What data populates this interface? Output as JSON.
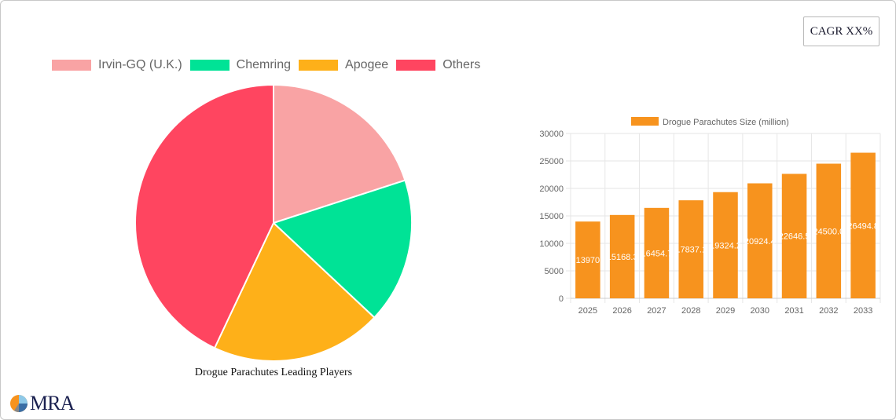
{
  "cagr_badge": "CAGR XX%",
  "pie": {
    "title": "Drogue Parachutes Leading Players",
    "legend": [
      {
        "label": "Irvin-GQ (U.K.)",
        "color": "#f9a3a4"
      },
      {
        "label": "Chemring",
        "color": "#00e396"
      },
      {
        "label": "Apogee",
        "color": "#feb019"
      },
      {
        "label": "Others",
        "color": "#ff4560"
      }
    ]
  },
  "bar": {
    "legend_label": "Drogue Parachutes Size (million)",
    "color": "#f7931e"
  },
  "logo": {
    "text": "MRA"
  },
  "chart_data": [
    {
      "type": "pie",
      "title": "Drogue Parachutes Leading Players",
      "categories": [
        "Irvin-GQ (U.K.)",
        "Chemring",
        "Apogee",
        "Others"
      ],
      "values": [
        20,
        17,
        20,
        43
      ],
      "colors": [
        "#f9a3a4",
        "#00e396",
        "#feb019",
        "#ff4560"
      ],
      "legend_position": "top"
    },
    {
      "type": "bar",
      "title": "",
      "series": [
        {
          "name": "Drogue Parachutes Size (million)",
          "values": [
            13970,
            15168.3,
            16454.7,
            17837.1,
            19324.2,
            20924.4,
            22646.5,
            24500.0,
            26494.8
          ]
        }
      ],
      "categories": [
        "2025",
        "2026",
        "2027",
        "2028",
        "2029",
        "2030",
        "2031",
        "2032",
        "2033"
      ],
      "data_labels": [
        "13970",
        "15168.3",
        "16454.7",
        "17837.1",
        "19324.2",
        "20924.4",
        "22646.5",
        "24500.0",
        "26494.8"
      ],
      "xlabel": "",
      "ylabel": "",
      "ylim": [
        0,
        30000
      ],
      "yticks": [
        0,
        5000,
        10000,
        15000,
        20000,
        25000,
        30000
      ],
      "grid": true,
      "legend_position": "top"
    }
  ]
}
